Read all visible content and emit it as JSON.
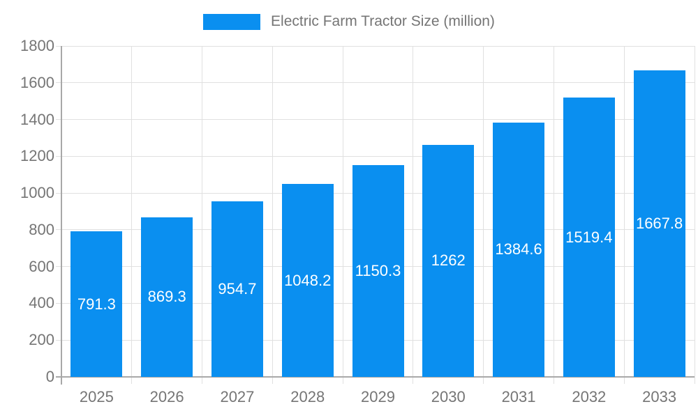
{
  "chart_data": {
    "type": "bar",
    "title": "Electric Farm Tractor Size (million)",
    "legend": {
      "position": "top-center",
      "entries": [
        {
          "label": "Electric Farm Tractor Size (million)",
          "color": "#0a8ff0"
        }
      ]
    },
    "categories": [
      "2025",
      "2026",
      "2027",
      "2028",
      "2029",
      "2030",
      "2031",
      "2032",
      "2033"
    ],
    "series": [
      {
        "name": "Electric Farm Tractor Size (million)",
        "values": [
          791.3,
          869.3,
          954.7,
          1048.2,
          1150.3,
          1262,
          1384.6,
          1519.4,
          1667.8
        ],
        "value_labels": [
          "791.3",
          "869.3",
          "954.7",
          "1048.2",
          "1150.3",
          "1262",
          "1384.6",
          "1519.4",
          "1667.8"
        ]
      }
    ],
    "xlabel": "",
    "ylabel": "",
    "ylim": [
      0,
      1800
    ],
    "y_ticks": [
      "0",
      "200",
      "400",
      "600",
      "800",
      "1000",
      "1200",
      "1400",
      "1600",
      "1800"
    ],
    "grid": true,
    "value_labels_position": "inside-center",
    "colors": {
      "bar": "#0a8ff0",
      "value_label": "#ffffff",
      "grid": "#e0e0e0",
      "axis": "#a8a8a8",
      "text": "#757575",
      "background": "#ffffff"
    }
  }
}
